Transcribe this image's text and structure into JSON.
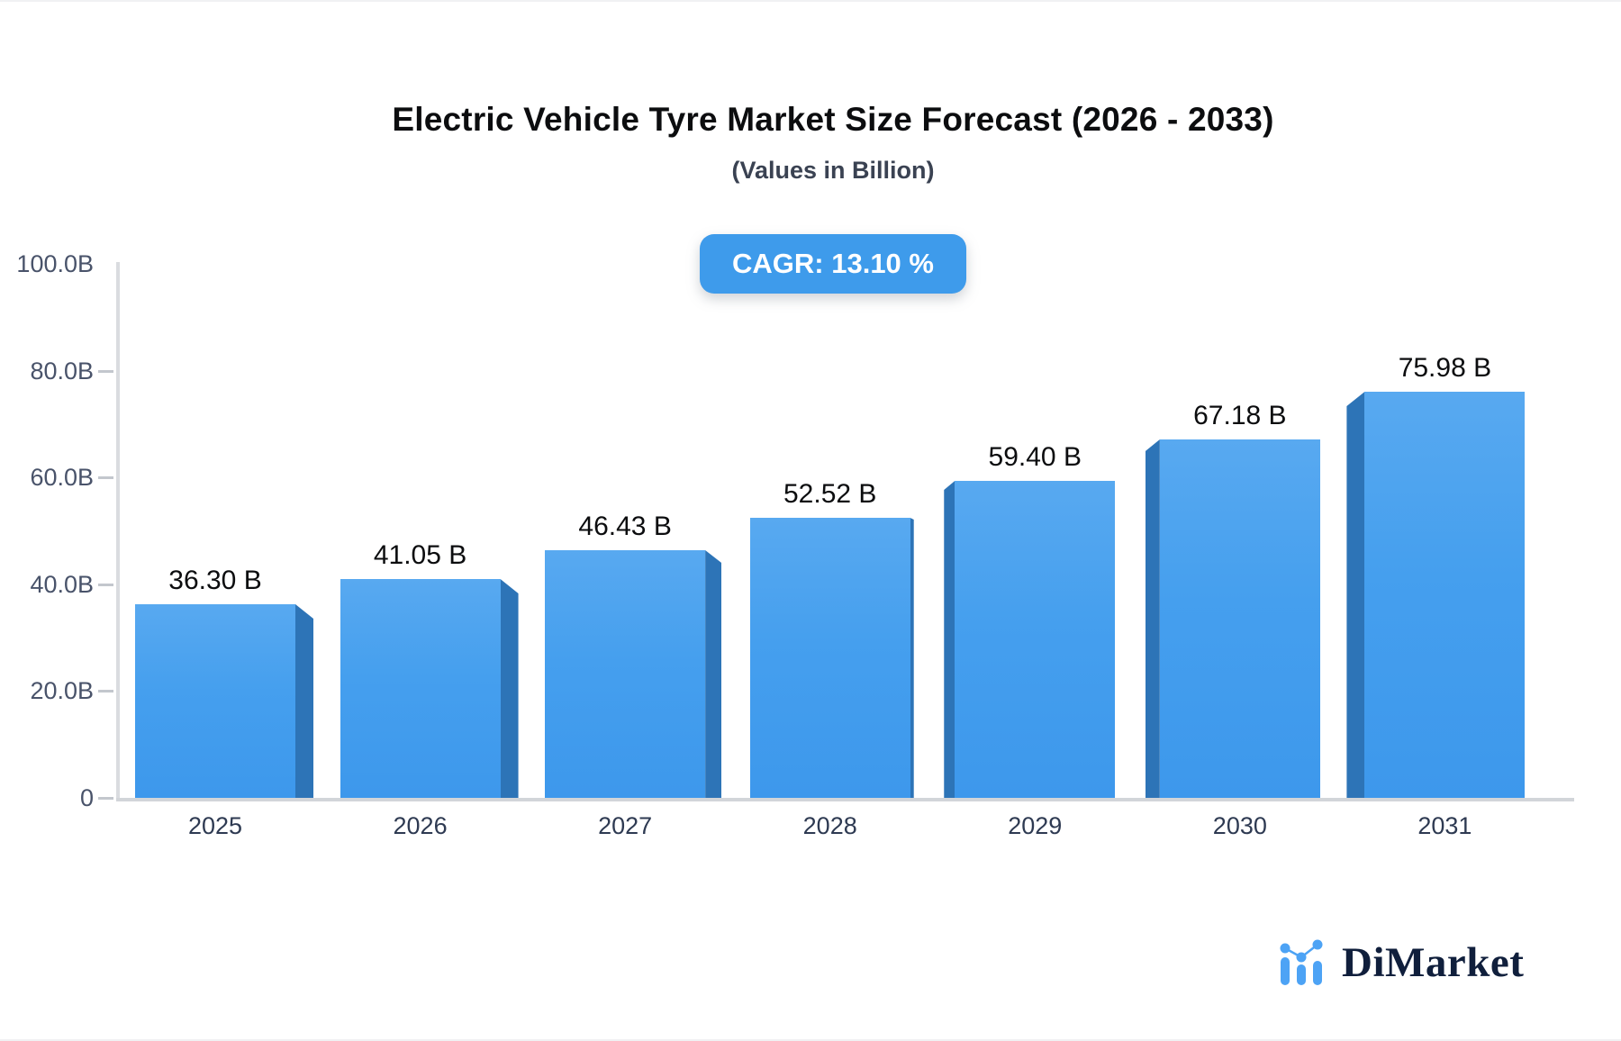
{
  "title": "Electric Vehicle Tyre Market Size Forecast (2026 - 2033)",
  "subtitle": "(Values in Billion)",
  "badge": {
    "label": "CAGR: 13.10 %"
  },
  "chart_data": {
    "type": "bar",
    "title": "Electric Vehicle Tyre Market Size Forecast (2026 - 2033)",
    "subtitle": "(Values in Billion)",
    "categories": [
      "2025",
      "2026",
      "2027",
      "2028",
      "2029",
      "2030",
      "2031"
    ],
    "values": [
      36.3,
      41.05,
      46.43,
      52.52,
      59.4,
      67.18,
      75.98
    ],
    "bar_labels": [
      "36.30 B",
      "41.05 B",
      "46.43 B",
      "52.52 B",
      "59.40 B",
      "67.18 B",
      "75.98 B"
    ],
    "unit": "Billion",
    "cagr": "13.10 %",
    "xlabel": "",
    "ylabel": "",
    "ylim": [
      0,
      100
    ],
    "grid": false,
    "legend": false,
    "style": "3d-bars",
    "yticks": [
      {
        "label": "100.0B",
        "value": 100
      },
      {
        "label": "80.0B",
        "value": 80
      },
      {
        "label": "60.0B",
        "value": 60
      },
      {
        "label": "40.0B",
        "value": 40
      },
      {
        "label": "20.0B",
        "value": 20
      },
      {
        "label": "0",
        "value": 0
      }
    ],
    "colors": {
      "bar_face_top": "#58a9f0",
      "bar_face_bottom": "#3d98ec",
      "bar_side": "#2d74b7",
      "badge_bg": "#3e9beb",
      "axis": "#d6d8dc",
      "label_text": "#0c0d0f",
      "tick_text": "#49536a"
    }
  },
  "logo": {
    "text": "DiMarket",
    "icon": "mini-bar-chart-icon",
    "text_color": "#101f3c",
    "accent_color": "#4da3f5"
  }
}
